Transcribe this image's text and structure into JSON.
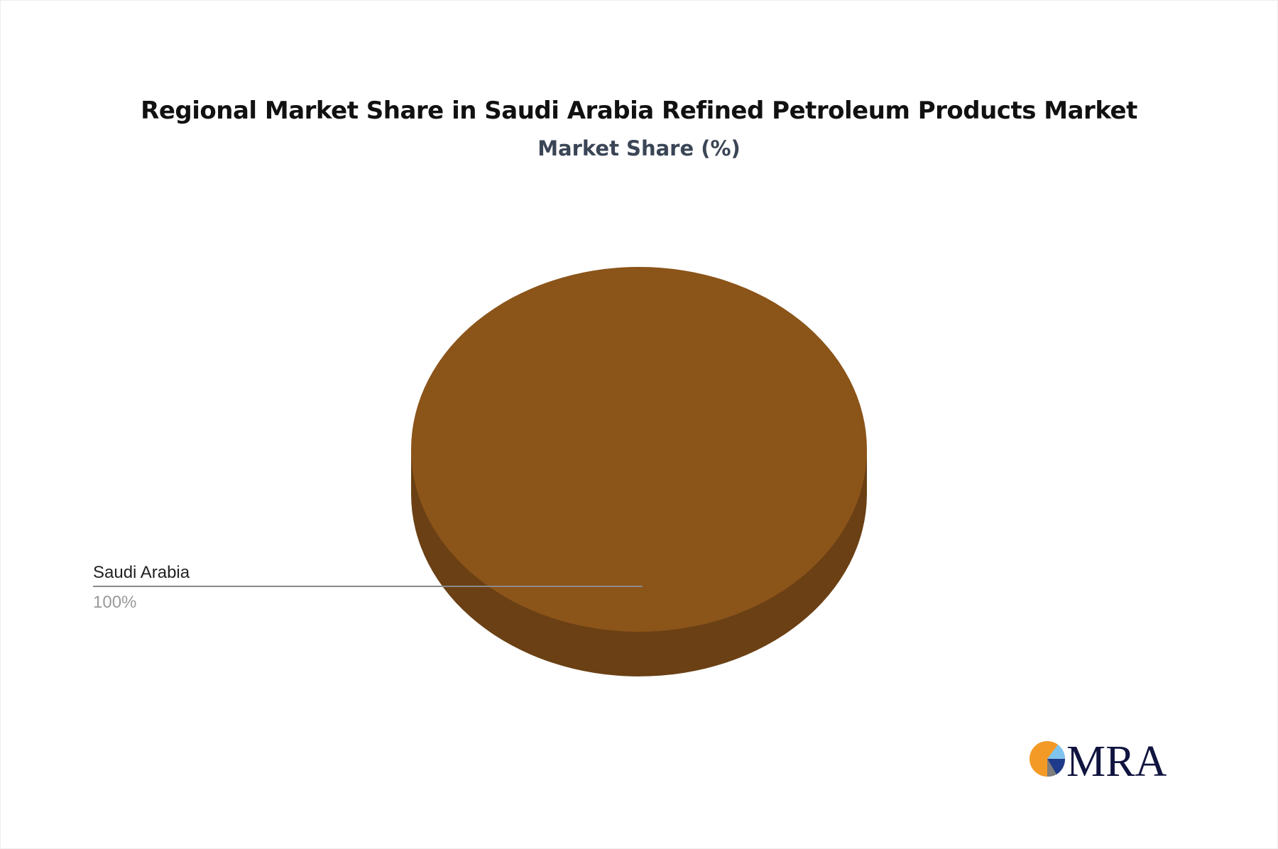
{
  "chart_data": {
    "type": "pie",
    "title": "Regional Market Share in Saudi Arabia Refined Petroleum Products Market",
    "subtitle": "Market Share (%)",
    "slices": [
      {
        "label": "Saudi Arabia",
        "value": 100,
        "value_label": "100%",
        "color": "#8b5419",
        "side_color": "#6a4014"
      }
    ],
    "style": "3d"
  },
  "logo": {
    "text": "MRA",
    "colors": [
      "#f39a26",
      "#7fc4ee",
      "#1e3a8a",
      "#7d7d7d",
      "#10143f"
    ]
  }
}
